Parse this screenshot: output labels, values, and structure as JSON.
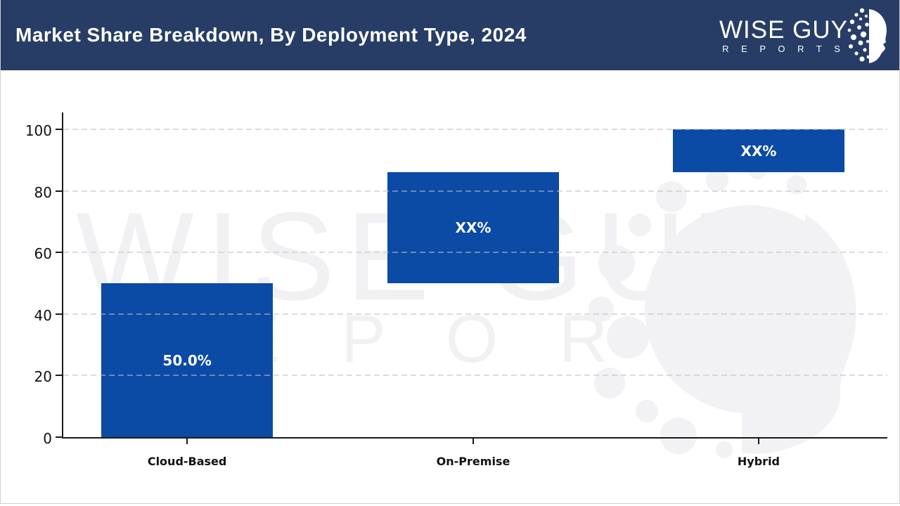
{
  "header": {
    "title": "Market Share Breakdown, By Deployment Type, 2024",
    "bg_color": "#273d66",
    "logo": {
      "line1": "WISE GUY",
      "line2": "R E P O R T S"
    }
  },
  "watermark": {
    "line1": "WISE GUY",
    "line2": "R E P O R T S"
  },
  "chart_data": {
    "type": "bar",
    "subtype": "stacked-breakdown-waterfall",
    "title": "Market Share Breakdown, By Deployment Type, 2024",
    "categories": [
      "Cloud-Based",
      "On-Premise",
      "Hybrid"
    ],
    "segments": [
      {
        "category": "Cloud-Based",
        "start": 0,
        "end": 50,
        "value": 50.0,
        "label": "50.0%"
      },
      {
        "category": "On-Premise",
        "start": 50,
        "end": 86,
        "value": 36.0,
        "label": "XX%"
      },
      {
        "category": "Hybrid",
        "start": 86,
        "end": 100,
        "value": 14.0,
        "label": "XX%"
      }
    ],
    "xlabel": "",
    "ylabel": "",
    "yticks": [
      0,
      20,
      40,
      60,
      80,
      100
    ],
    "ylim": [
      0,
      100
    ],
    "grid": "horizontal-dashed",
    "legend": "none",
    "bar_color": "#0b4aa5",
    "grid_color": "#d9d9d9",
    "axis_color": "#1a1a1a",
    "label_color": "#ffffff"
  }
}
